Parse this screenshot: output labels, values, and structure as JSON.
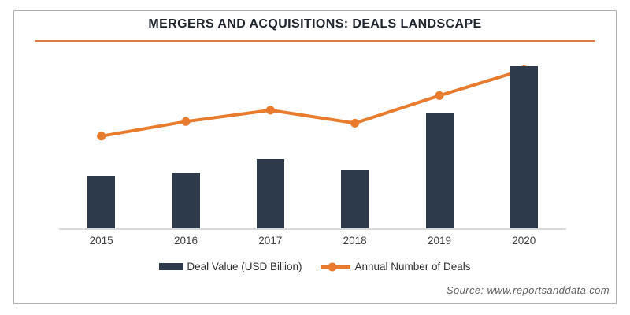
{
  "header": {
    "title": "MERGERS AND ACQUISITIONS: DEALS LANDSCAPE"
  },
  "chart_data": {
    "type": "bar",
    "subtype": "combo-bar-line",
    "title": "MERGERS AND ACQUISITIONS: DEALS LANDSCAPE",
    "categories": [
      "2015",
      "2016",
      "2017",
      "2018",
      "2019",
      "2020"
    ],
    "series": [
      {
        "name": "Deal Value (USD Billion)",
        "type": "bar",
        "color": "#2d3a4b",
        "values": [
          32,
          34,
          43,
          36,
          71,
          100
        ]
      },
      {
        "name": "Annual Number of Deals",
        "type": "line",
        "color": "#e87b2e",
        "values": [
          57,
          66,
          73,
          65,
          82,
          98
        ]
      }
    ],
    "xlabel": "",
    "ylabel": "",
    "ylim": [
      0,
      107
    ],
    "grid": false,
    "legend_position": "bottom",
    "axis_note": "no y-axis ticks, gridlines or data labels shown; values are relative estimates indexed to the 2020 bar = 100"
  },
  "legend": {
    "items": [
      {
        "label": "Deal Value (USD Billion)",
        "marker": "bar-swatch",
        "color": "#2d3a4b"
      },
      {
        "label": "Annual Number of Deals",
        "marker": "line-with-dot",
        "color": "#e87b2e"
      }
    ]
  },
  "footer": {
    "source": "Source: www.reportsanddata.com"
  },
  "colors": {
    "bar": "#2d3a4b",
    "line": "#e87b2e",
    "title_rule": "#dc7f4c",
    "frame_border": "#b0b0b0",
    "axis_line": "#d9d9d9",
    "title_text": "#21262e",
    "label_text": "#404040",
    "source_text": "#5f5f5f"
  }
}
